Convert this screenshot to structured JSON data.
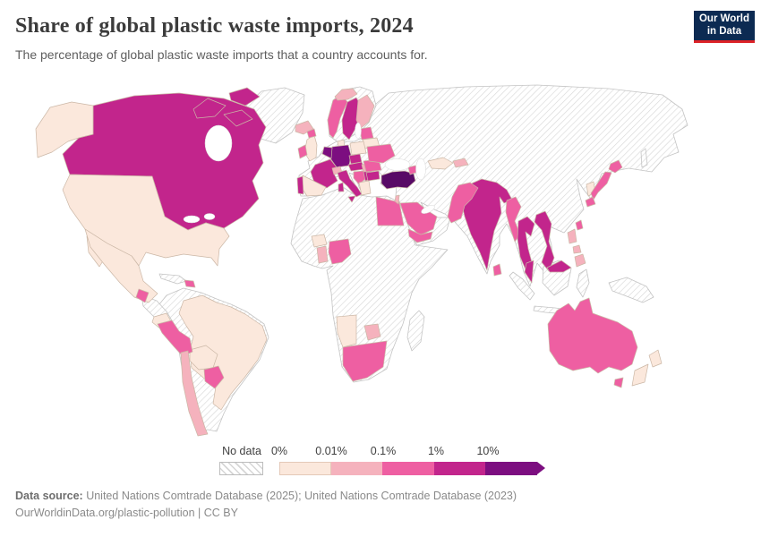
{
  "header": {
    "title": "Share of global plastic waste imports, 2024",
    "subtitle": "The percentage of global plastic waste imports that a country accounts for.",
    "logo_line1": "Our World",
    "logo_line2": "in Data",
    "logo_bg": "#0c2a52",
    "logo_accent": "#dc2227"
  },
  "legend": {
    "no_data_label": "No data",
    "ticks": [
      "0%",
      "0.01%",
      "0.1%",
      "1%",
      "10%"
    ],
    "scale_colors": [
      "#fbe8dc",
      "#f5b2bd",
      "#ee5fa2",
      "#c2258c",
      "#7c0e80"
    ]
  },
  "footer": {
    "source_label": "Data source:",
    "source_text": " United Nations Comtrade Database (2025); United Nations Comtrade Database (2023)",
    "link_text": "OurWorldinData.org/plastic-pollution | CC BY"
  },
  "map": {
    "no_data_border": "#c4c4c4",
    "country_border": "#cbb7a6",
    "buckets": {
      "b0": {
        "color": "#fbe8dc"
      },
      "b1": {
        "color": "#f5b2bd"
      },
      "b2": {
        "color": "#ee5fa2"
      },
      "b3": {
        "color": "#c2258c"
      },
      "b4": {
        "color": "#7c0e80"
      },
      "b5": {
        "color": "#580a66"
      }
    },
    "countries": {
      "greenland": "no_data",
      "eurasia": "no_data",
      "africa": "no_data",
      "south_america": "no_data",
      "scandinavia": "no_data",
      "madagascar": "no_data",
      "cuba": "no_data",
      "central_america": "no_data",
      "sumatra": "no_data",
      "java": "no_data",
      "borneo": "no_data",
      "sulawesi": "no_data",
      "new_guinea": "no_data",
      "sakhalin": "no_data",
      "canada": "b3",
      "arctic_islands": "b3",
      "alaska": "b0",
      "usa": "b0",
      "baja": "b0",
      "mexico": "b0",
      "guatemala": "b2",
      "hispaniola": "b2",
      "ecuador": "b0",
      "peru": "b2",
      "brazil": "b0",
      "bolivia": "b0",
      "paraguay": "b2",
      "chile": "b1",
      "iceland": "b1",
      "uk": "b0",
      "uk_isles": "b2",
      "ireland": "b2",
      "norway": "b2",
      "svalbard": "b1",
      "sweden": "b3",
      "finland": "b1",
      "denmark": "b0",
      "baltics": "b2",
      "belarus": "b0",
      "poland": "b0",
      "germany": "b4",
      "benelux": "b4",
      "france": "b3",
      "spain": "b0",
      "portugal": "b3",
      "switzerland": "b1",
      "italy": "b3",
      "czechia": "b3",
      "austria": "b3",
      "hungary": "b1",
      "croatia": "b2",
      "serbia": "b3",
      "romania": "b2",
      "bulgaria": "b3",
      "greece": "b0",
      "ukraine": "b2",
      "turkey": "b5",
      "egypt": "b2",
      "saudi_arabia": "b2",
      "yemen": "b2",
      "israel": "b1",
      "azerbaijan": "b2",
      "uzbekistan": "b0",
      "kyrgyzstan": "b1",
      "pakistan": "b2",
      "india": "b3",
      "sri_lanka": "b2",
      "myanmar": "b2",
      "thailand": "b3",
      "vietnam": "b3",
      "malaysia_peninsula": "b3",
      "malaysia_borneo": "b3",
      "south_korea": "b0",
      "japan": "b2",
      "taiwan": "b2",
      "philippines": "b1",
      "burkina_faso": "b0",
      "ghana": "b1",
      "nigeria": "b2",
      "namibia": "b0",
      "zimbabwe": "b1",
      "south_africa": "b2",
      "australia": "b2",
      "tasmania": "b2",
      "new_zealand": "b0"
    }
  },
  "chart_data": {
    "type": "choropleth",
    "title": "Share of global plastic waste imports, 2024",
    "subtitle": "The percentage of global plastic waste imports that a country accounts for.",
    "unit": "% of global plastic waste imports",
    "legend_bins": [
      {
        "range": "0% - 0.01%",
        "color": "#fbe8dc"
      },
      {
        "range": "0.01% - 0.1%",
        "color": "#f5b2bd"
      },
      {
        "range": "0.1% - 1%",
        "color": "#ee5fa2"
      },
      {
        "range": "1% - 10%",
        "color": "#c2258c"
      },
      {
        "range": "10%+",
        "color": "#7c0e80"
      }
    ],
    "no_data_style": "gray diagonal hatching",
    "values": {
      "Turkey": "10%+ (darkest on map)",
      "Germany": "10%+",
      "Netherlands": "10%+",
      "Belgium": "10%+",
      "Canada": "1-10%",
      "Sweden": "1-10%",
      "France": "1-10%",
      "Portugal": "1-10%",
      "Czechia": "1-10%",
      "Austria": "1-10%",
      "Italy": "1-10%",
      "Serbia": "1-10%",
      "Bulgaria": "1-10%",
      "India": "1-10%",
      "Thailand": "1-10%",
      "Vietnam": "1-10%",
      "Malaysia": "1-10%",
      "Norway": "0.1-1%",
      "Ireland": "0.1-1%",
      "Ukraine": "0.1-1%",
      "Romania": "0.1-1%",
      "Croatia": "0.1-1%",
      "Egypt": "0.1-1%",
      "Saudi Arabia": "0.1-1%",
      "Yemen": "0.1-1%",
      "Azerbaijan": "0.1-1%",
      "Pakistan": "0.1-1%",
      "Sri Lanka": "0.1-1%",
      "Myanmar": "0.1-1%",
      "Japan": "0.1-1%",
      "Taiwan": "0.1-1%",
      "Nigeria": "0.1-1%",
      "South Africa": "0.1-1%",
      "Australia": "0.1-1%",
      "Peru": "0.1-1%",
      "Paraguay": "0.1-1%",
      "Guatemala": "0.1-1%",
      "Dominican Republic": "0.1-1%",
      "Chile": "0.01-0.1%",
      "Iceland": "0.01-0.1%",
      "Finland": "0.01-0.1%",
      "Switzerland": "0.01-0.1%",
      "Hungary": "0.01-0.1%",
      "Kyrgyzstan": "0.01-0.1%",
      "Philippines": "0.01-0.1%",
      "Ghana": "0.01-0.1%",
      "Zimbabwe": "0.01-0.1%",
      "Israel": "0.01-0.1%",
      "United States": "0-0.01%",
      "Mexico": "0-0.01%",
      "Brazil": "0-0.01%",
      "Bolivia": "0-0.01%",
      "Ecuador": "0-0.01%",
      "United Kingdom": "0-0.01%",
      "Spain": "0-0.01%",
      "Denmark": "0-0.01%",
      "Poland": "0-0.01%",
      "Belarus": "0-0.01%",
      "Greece": "0-0.01%",
      "Uzbekistan": "0-0.01%",
      "South Korea": "0-0.01%",
      "Burkina Faso": "0-0.01%",
      "Namibia": "0-0.01%",
      "New Zealand": "0-0.01%",
      "Russia": "no data",
      "China": "no data",
      "Greenland": "no data",
      "Argentina": "no data",
      "Colombia": "no data",
      "Venezuela": "no data",
      "Iran": "no data",
      "Iraq": "no data",
      "Kazakhstan": "no data",
      "Mongolia": "no data",
      "Indonesia": "no data",
      "Madagascar": "no data",
      "Cuba": "no data",
      "Papua New Guinea": "no data",
      "most of Africa": "no data"
    }
  }
}
